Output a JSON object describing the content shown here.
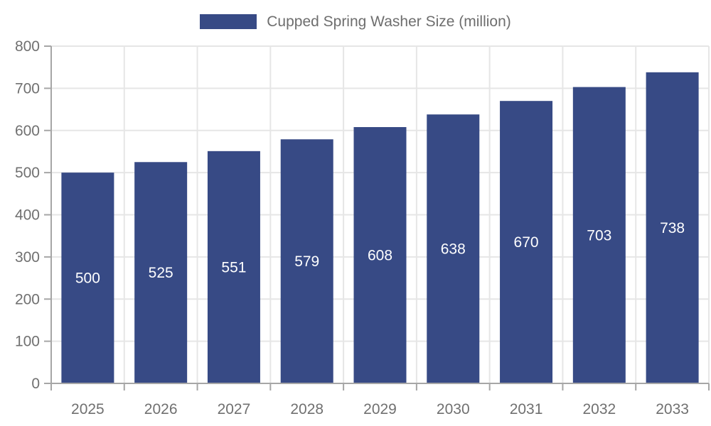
{
  "legend": {
    "label": "Cupped Spring Washer Size (million)"
  },
  "chart_data": {
    "type": "bar",
    "title": "Cupped Spring Washer Size (million)",
    "categories": [
      "2025",
      "2026",
      "2027",
      "2028",
      "2029",
      "2030",
      "2031",
      "2032",
      "2033"
    ],
    "values": [
      500,
      525,
      551,
      579,
      608,
      638,
      670,
      703,
      738
    ],
    "xlabel": "",
    "ylabel": "",
    "ylim": [
      0,
      800
    ],
    "ytick_step": 100,
    "grid": true,
    "legend_position": "top-center",
    "colors": {
      "bar": "#374a85",
      "bar_label": "#ffffff",
      "axis_text": "#707070",
      "grid_line": "#e6e6e6",
      "axis_line": "#a6a6a6"
    }
  }
}
